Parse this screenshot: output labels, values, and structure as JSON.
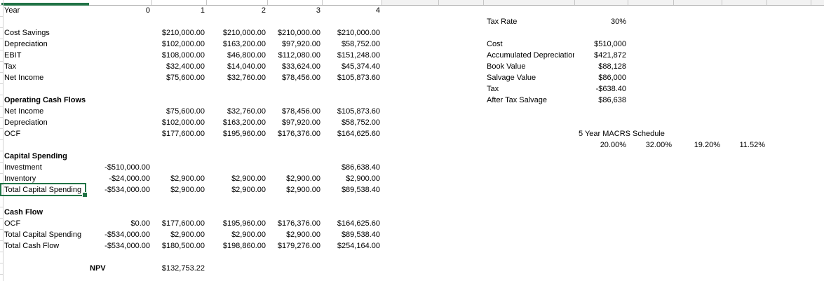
{
  "colors": {
    "selection_green": "#217346",
    "gridline": "#d4d4d4",
    "strip_background": "#f2f2f2",
    "strip_border": "#ababab"
  },
  "left_table": {
    "rows": [
      {
        "label": "Year",
        "bold": false,
        "values": [
          "0",
          "1",
          "2",
          "3",
          "4"
        ]
      },
      {
        "label": "",
        "bold": false,
        "values": [
          "",
          "",
          "",
          "",
          ""
        ]
      },
      {
        "label": "Cost Savings",
        "bold": false,
        "values": [
          "",
          "$210,000.00",
          "$210,000.00",
          "$210,000.00",
          "$210,000.00"
        ]
      },
      {
        "label": "Depreciation",
        "bold": false,
        "values": [
          "",
          "$102,000.00",
          "$163,200.00",
          "$97,920.00",
          "$58,752.00"
        ]
      },
      {
        "label": "EBIT",
        "bold": false,
        "values": [
          "",
          "$108,000.00",
          "$46,800.00",
          "$112,080.00",
          "$151,248.00"
        ]
      },
      {
        "label": "Tax",
        "bold": false,
        "values": [
          "",
          "$32,400.00",
          "$14,040.00",
          "$33,624.00",
          "$45,374.40"
        ]
      },
      {
        "label": "Net Income",
        "bold": false,
        "values": [
          "",
          "$75,600.00",
          "$32,760.00",
          "$78,456.00",
          "$105,873.60"
        ]
      },
      {
        "label": "",
        "bold": false,
        "values": [
          "",
          "",
          "",
          "",
          ""
        ]
      },
      {
        "label": "Operating Cash Flows",
        "bold": true,
        "values": [
          "",
          "",
          "",
          "",
          ""
        ]
      },
      {
        "label": "Net Income",
        "bold": false,
        "values": [
          "",
          "$75,600.00",
          "$32,760.00",
          "$78,456.00",
          "$105,873.60"
        ]
      },
      {
        "label": "Depreciation",
        "bold": false,
        "values": [
          "",
          "$102,000.00",
          "$163,200.00",
          "$97,920.00",
          "$58,752.00"
        ]
      },
      {
        "label": "OCF",
        "bold": false,
        "values": [
          "",
          "$177,600.00",
          "$195,960.00",
          "$176,376.00",
          "$164,625.60"
        ]
      },
      {
        "label": "",
        "bold": false,
        "values": [
          "",
          "",
          "",
          "",
          ""
        ]
      },
      {
        "label": "Capital Spending",
        "bold": true,
        "values": [
          "",
          "",
          "",
          "",
          ""
        ]
      },
      {
        "label": "Investment",
        "bold": false,
        "values": [
          "-$510,000.00",
          "",
          "",
          "",
          "$86,638.40"
        ]
      },
      {
        "label": "Inventory",
        "bold": false,
        "values": [
          "-$24,000.00",
          "$2,900.00",
          "$2,900.00",
          "$2,900.00",
          "$2,900.00"
        ]
      },
      {
        "label": "Total Capital Spending",
        "bold": false,
        "selected": true,
        "values": [
          "-$534,000.00",
          "$2,900.00",
          "$2,900.00",
          "$2,900.00",
          "$89,538.40"
        ]
      },
      {
        "label": "",
        "bold": false,
        "values": [
          "",
          "",
          "",
          "",
          ""
        ]
      },
      {
        "label": "Cash Flow",
        "bold": true,
        "values": [
          "",
          "",
          "",
          "",
          ""
        ]
      },
      {
        "label": "OCF",
        "bold": false,
        "values": [
          "$0.00",
          "$177,600.00",
          "$195,960.00",
          "$176,376.00",
          "$164,625.60"
        ]
      },
      {
        "label": "Total Capital Spending",
        "bold": false,
        "values": [
          "-$534,000.00",
          "$2,900.00",
          "$2,900.00",
          "$2,900.00",
          "$89,538.40"
        ]
      },
      {
        "label": "Total Cash Flow",
        "bold": false,
        "values": [
          "-$534,000.00",
          "$180,500.00",
          "$198,860.00",
          "$179,276.00",
          "$254,164.00"
        ]
      }
    ]
  },
  "npv": {
    "label": "NPV",
    "value": "$132,753.22"
  },
  "side_panel": {
    "rows": [
      {
        "label": "Tax Rate",
        "value": "30%"
      },
      {
        "label": "",
        "value": ""
      },
      {
        "label": "Cost",
        "value": "$510,000"
      },
      {
        "label": "Accumulated Depreciation",
        "value": "$421,872"
      },
      {
        "label": "Book Value",
        "value": "$88,128"
      },
      {
        "label": "Salvage Value",
        "value": "$86,000"
      },
      {
        "label": "Tax",
        "value": "-$638.40"
      },
      {
        "label": "After Tax Salvage",
        "value": "$86,638"
      }
    ]
  },
  "macrs": {
    "title": "5 Year MACRS Schedule",
    "values": [
      "20.00%",
      "32.00%",
      "19.20%",
      "11.52%"
    ]
  }
}
